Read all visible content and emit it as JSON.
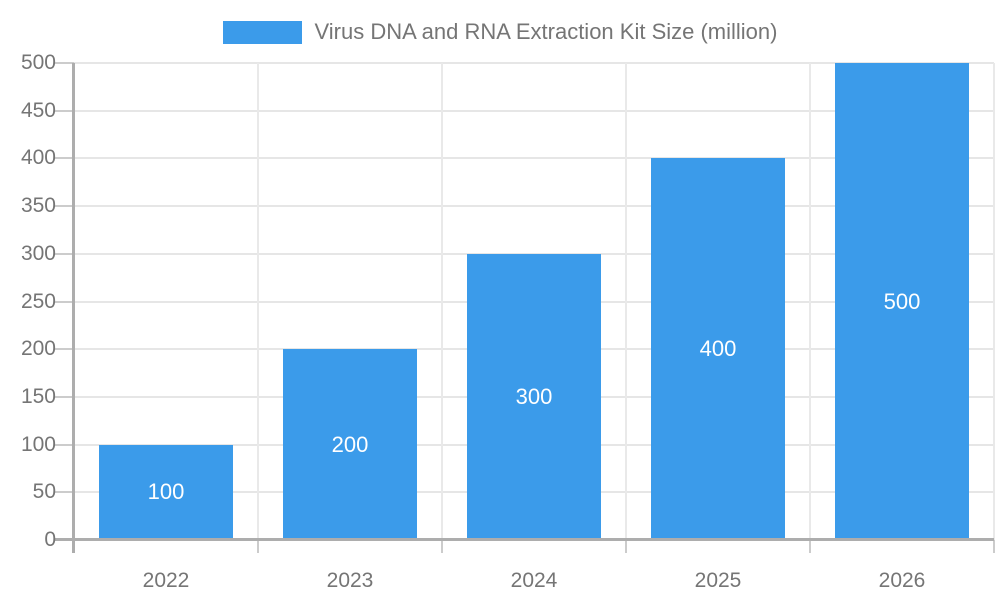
{
  "chart_data": {
    "type": "bar",
    "categories": [
      "2022",
      "2023",
      "2024",
      "2025",
      "2026"
    ],
    "series": [
      {
        "name": "Virus DNA and RNA Extraction Kit Size (million)",
        "values": [
          100,
          200,
          300,
          400,
          500
        ]
      }
    ],
    "bar_value_labels": [
      "100",
      "200",
      "300",
      "400",
      "500"
    ],
    "title": "",
    "xlabel": "",
    "ylabel": "",
    "ylim": [
      0,
      500
    ],
    "yticks": [
      0,
      50,
      100,
      150,
      200,
      250,
      300,
      350,
      400,
      450,
      500
    ],
    "grid": true,
    "legend_position": "top",
    "colors": {
      "bar": "#3B9BEA",
      "bar_label": "#ffffff",
      "axis_text": "#757575",
      "hgridline": "#e6e6e6",
      "vgridline": "#e9e9e9",
      "tick": "#cccccc",
      "axis_line": "#adadad",
      "background": "#ffffff"
    }
  }
}
